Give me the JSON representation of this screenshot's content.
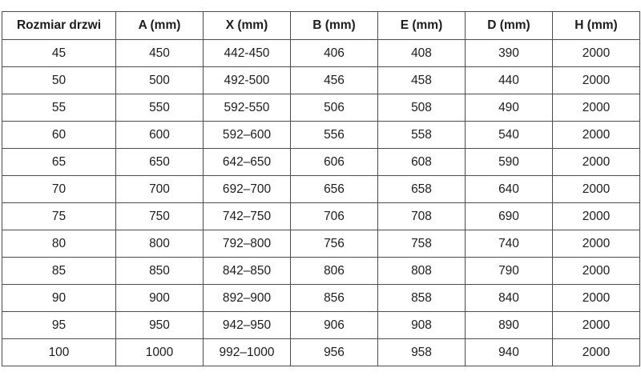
{
  "colors": {
    "background": "#ffffff",
    "border": "#4d4d4d",
    "text": "#1c1c1c"
  },
  "chart_data": {
    "type": "table",
    "title": "",
    "columns": [
      "Rozmiar drzwi",
      "A (mm)",
      "X (mm)",
      "B (mm)",
      "E (mm)",
      "D (mm)",
      "H (mm)"
    ],
    "rows": [
      [
        "45",
        "450",
        "442-450",
        "406",
        "408",
        "390",
        "2000"
      ],
      [
        "50",
        "500",
        "492-500",
        "456",
        "458",
        "440",
        "2000"
      ],
      [
        "55",
        "550",
        "592-550",
        "506",
        "508",
        "490",
        "2000"
      ],
      [
        "60",
        "600",
        "592–600",
        "556",
        "558",
        "540",
        "2000"
      ],
      [
        "65",
        "650",
        "642–650",
        "606",
        "608",
        "590",
        "2000"
      ],
      [
        "70",
        "700",
        "692–700",
        "656",
        "658",
        "640",
        "2000"
      ],
      [
        "75",
        "750",
        "742–750",
        "706",
        "708",
        "690",
        "2000"
      ],
      [
        "80",
        "800",
        "792–800",
        "756",
        "758",
        "740",
        "2000"
      ],
      [
        "85",
        "850",
        "842–850",
        "806",
        "808",
        "790",
        "2000"
      ],
      [
        "90",
        "900",
        "892–900",
        "856",
        "858",
        "840",
        "2000"
      ],
      [
        "95",
        "950",
        "942–950",
        "906",
        "908",
        "890",
        "2000"
      ],
      [
        "100",
        "1000",
        "992–1000",
        "956",
        "958",
        "940",
        "2000"
      ]
    ],
    "layout": {
      "grid": true,
      "header_bold": true,
      "cell_align": "center"
    }
  }
}
